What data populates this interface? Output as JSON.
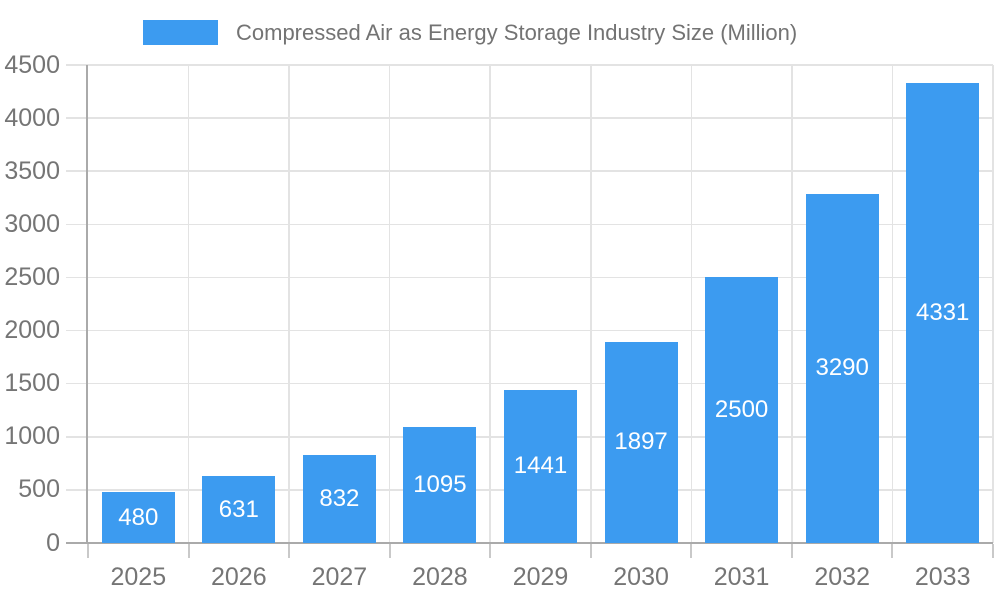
{
  "chart_data": {
    "type": "bar",
    "title": "Compressed Air as Energy Storage Industry Size (Million)",
    "categories": [
      "2025",
      "2026",
      "2027",
      "2028",
      "2029",
      "2030",
      "2031",
      "2032",
      "2033"
    ],
    "values": [
      480,
      631,
      832,
      1095,
      1441,
      1897,
      2500,
      3290,
      4331
    ],
    "ylim": [
      0,
      4500
    ],
    "ytick_step": 500,
    "ytick_labels": [
      "0",
      "500",
      "1000",
      "1500",
      "2000",
      "2500",
      "3000",
      "3500",
      "4000",
      "4500"
    ],
    "grid": true,
    "legend_position": "top",
    "value_label_style": "inside-center-white",
    "colors": {
      "bar": "#3C9BF0",
      "value_label": "#FFFFFF",
      "axis_text": "#757575",
      "title_text": "#737373",
      "gridline": "#e3e3e3",
      "axis_line": "#aaaaaa",
      "tick": "#c9c9c9",
      "background": "#FFFFFF"
    }
  }
}
